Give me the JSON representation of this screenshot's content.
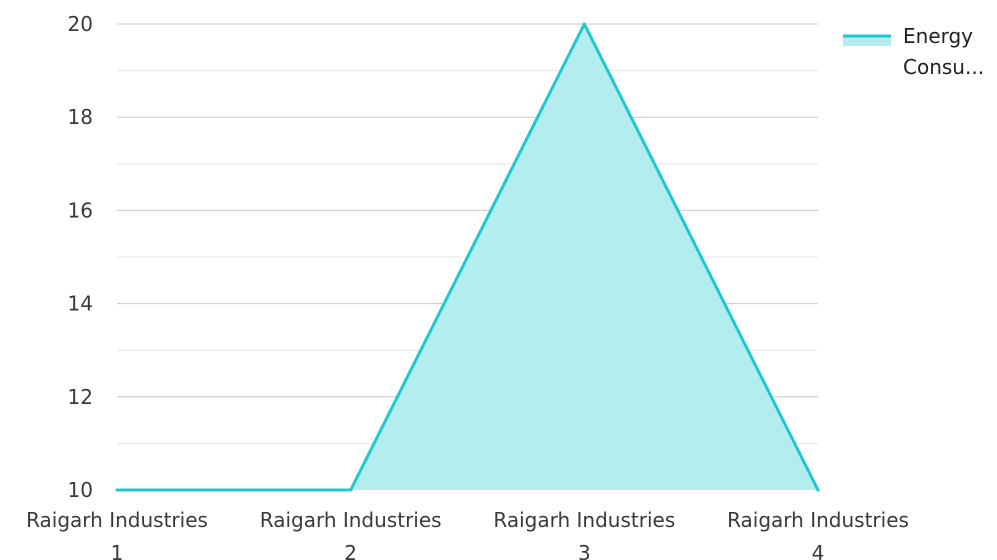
{
  "chart_data": {
    "type": "area",
    "categories": [
      "Raigarh Industries 1",
      "Raigarh Industries 2",
      "Raigarh Industries 3",
      "Raigarh Industries 4"
    ],
    "category_lines": [
      [
        "Raigarh Industries",
        "1"
      ],
      [
        "Raigarh Industries",
        "2"
      ],
      [
        "Raigarh Industries",
        "3"
      ],
      [
        "Raigarh Industries",
        "4"
      ]
    ],
    "series": [
      {
        "name": "Energy Consu...",
        "values": [
          10,
          10,
          20,
          10
        ]
      }
    ],
    "legend": {
      "position": "top-right",
      "lines": [
        "Energy",
        "Consu..."
      ]
    },
    "ylim": [
      10,
      20
    ],
    "yticks": [
      10,
      12,
      14,
      16,
      18,
      20
    ],
    "ytick_labels": [
      "10",
      "12",
      "14",
      "16",
      "18",
      "20"
    ],
    "minor_grid": true,
    "grid": true,
    "colors": {
      "line": "#1ec8cd",
      "fill": "#b3eded",
      "grid": "#c8c8c8",
      "minor_grid": "#e6e6e6"
    }
  }
}
